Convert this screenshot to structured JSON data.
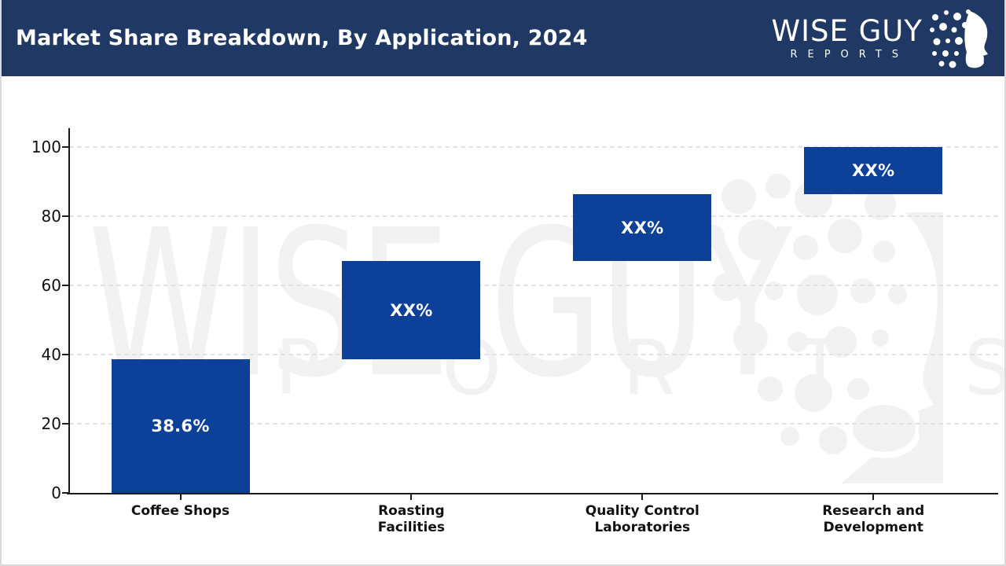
{
  "header": {
    "title": "Market Share Breakdown, By Application, 2024",
    "logo": {
      "line1": "WISE GUY",
      "line2": "REPORTS",
      "head_icon": "dotted-head-profile-icon"
    }
  },
  "watermark": {
    "line1": "WISE GUY",
    "line2": "P O R T S",
    "head_icon": "dotted-head-profile-watermark"
  },
  "chart_data": {
    "type": "bar",
    "subtype": "stacked-waterfall",
    "title": "Market Share Breakdown, By Application, 2024",
    "categories": [
      "Coffee Shops",
      "Roasting\nFacilities",
      "Quality Control\nLaboratories",
      "Research and\nDevelopment"
    ],
    "bars": [
      {
        "category": "Coffee Shops",
        "start": 0,
        "end": 38.6,
        "value_label": "38.6%"
      },
      {
        "category": "Roasting Facilities",
        "start": 38.6,
        "end": 67,
        "value_label": "XX%"
      },
      {
        "category": "Quality Control Laboratories",
        "start": 67,
        "end": 86.4,
        "value_label": "XX%"
      },
      {
        "category": "Research and Development",
        "start": 86.4,
        "end": 100,
        "value_label": "XX%"
      }
    ],
    "y_ticks": [
      0,
      20,
      40,
      60,
      80,
      100
    ],
    "ylim": [
      0,
      105
    ],
    "xlabel": "",
    "ylabel": "",
    "legend": "none",
    "grid": "horizontal-dashed"
  },
  "colors": {
    "header_bg": "#1f3864",
    "bar": "#0d4199",
    "bar_label": "#ffffff",
    "grid": "#e2e2e2",
    "axis": "#1a1a1a",
    "watermark": "#f2f2f2",
    "frame_border": "#d9d9d9"
  }
}
